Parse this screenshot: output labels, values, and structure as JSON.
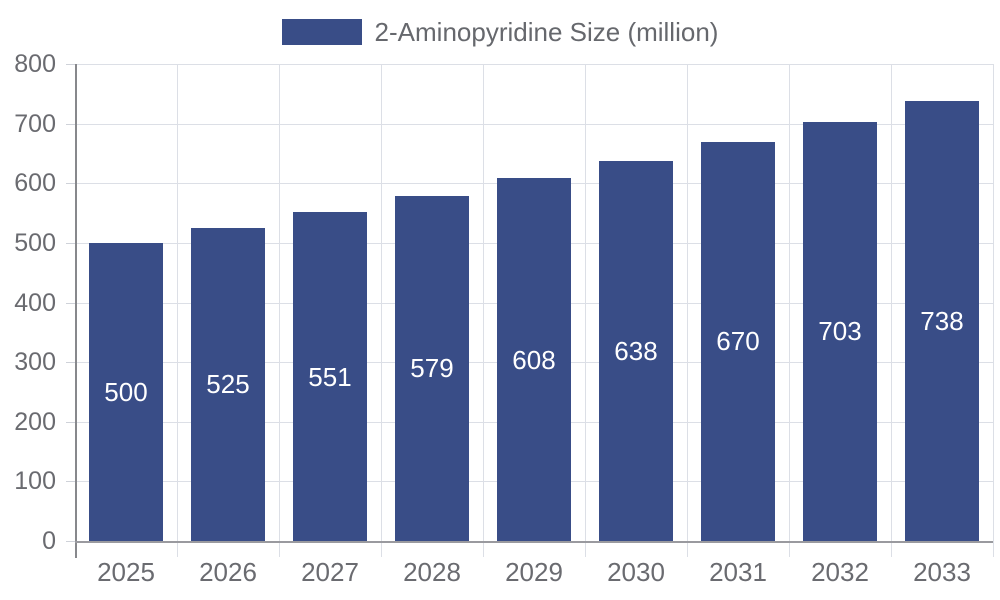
{
  "chart_data": {
    "type": "bar",
    "title": "",
    "series_name": "2-Aminopyridine Size (million)",
    "categories": [
      "2025",
      "2026",
      "2027",
      "2028",
      "2029",
      "2030",
      "2031",
      "2032",
      "2033"
    ],
    "values": [
      500,
      525,
      551,
      579,
      608,
      638,
      670,
      703,
      738
    ],
    "xlabel": "",
    "ylabel": "",
    "ylim": [
      0,
      800
    ],
    "ytick_step": 100,
    "grid": true,
    "bar_value_labels": true,
    "legend_position": "top-center",
    "colors": {
      "bar": "#394d87",
      "bar_label": "#ffffff",
      "axis_text": "#6a6b70",
      "legend_text": "#66686d",
      "grid_line": "#dcdfe6",
      "axis_line": "#9a9a9f",
      "y_axis_line": "#87888c",
      "tick": "#cfd2d9",
      "bg": "#ffffff"
    }
  }
}
